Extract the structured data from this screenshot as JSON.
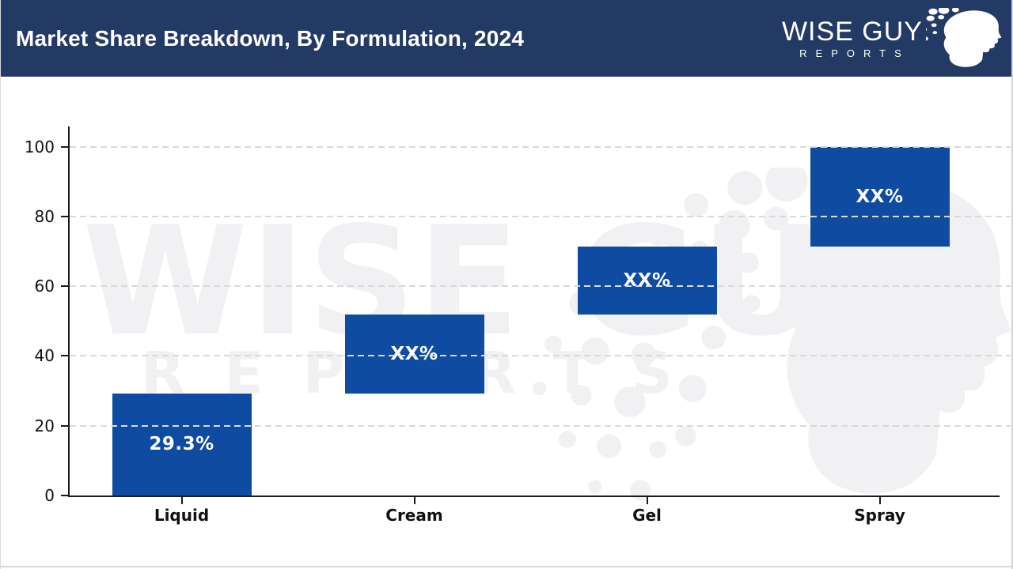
{
  "header": {
    "title": "Market Share Breakdown, By Formulation, 2024",
    "bg_color": "#233a64",
    "logo": {
      "line1": "WISE GUY",
      "line2": "REPORTS"
    }
  },
  "watermark": {
    "line1": "WISE GUY",
    "line2": "REPORTS"
  },
  "chart_data": {
    "type": "bar",
    "subtype": "waterfall",
    "title": "Market Share Breakdown, By Formulation, 2024",
    "categories": [
      "Liquid",
      "Cream",
      "Gel",
      "Spray"
    ],
    "series": [
      {
        "name": "Market share (%)",
        "segments": [
          [
            0,
            29.3
          ],
          [
            29.3,
            51.9
          ],
          [
            51.9,
            71.3
          ],
          [
            71.3,
            100
          ]
        ]
      }
    ],
    "bar_labels": [
      "29.3%",
      "XX%",
      "XX%",
      "XX%"
    ],
    "xlabel": "",
    "ylabel": "",
    "yticks": [
      0,
      20,
      40,
      60,
      80,
      100
    ],
    "ylim": [
      0,
      105
    ],
    "grid": "horizontal-dashed",
    "legend": "none",
    "bar_color": "#0e4ba1",
    "label_color": "#ffffff",
    "gridline_color": "#d9d9d9"
  }
}
